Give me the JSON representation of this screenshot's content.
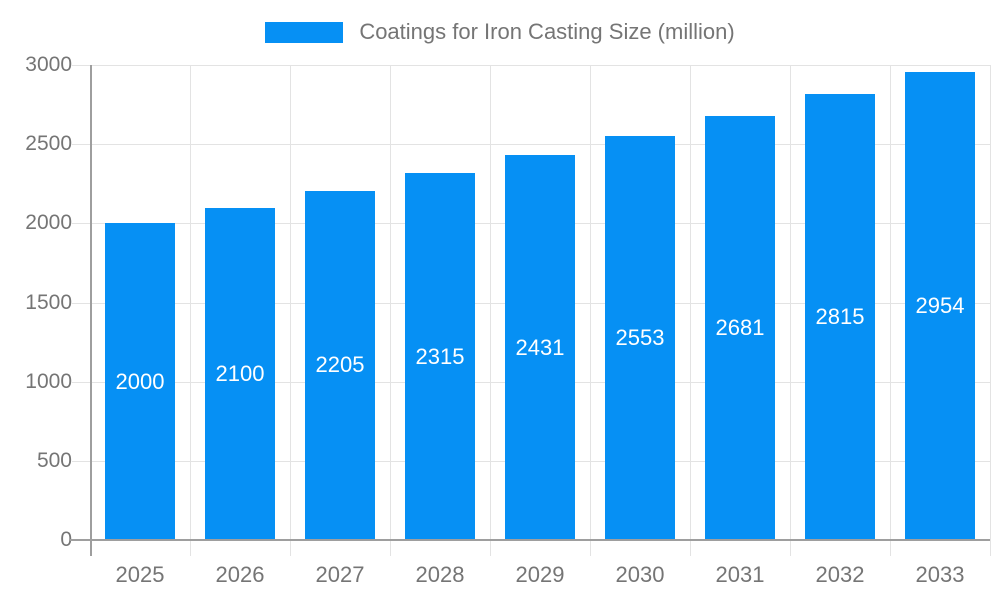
{
  "legend": {
    "label": "Coatings for Iron Casting Size (million)"
  },
  "chart_data": {
    "type": "bar",
    "title": "Coatings for Iron Casting Size (million)",
    "categories": [
      "2025",
      "2026",
      "2027",
      "2028",
      "2029",
      "2030",
      "2031",
      "2032",
      "2033"
    ],
    "values": [
      2000,
      2100,
      2205,
      2315,
      2431,
      2553,
      2681,
      2815,
      2954
    ],
    "series_name": "Coatings for Iron Casting Size (million)",
    "xlabel": "",
    "ylabel": "",
    "ylim": [
      0,
      3000
    ],
    "ytick_step": 500,
    "yticks": [
      0,
      500,
      1000,
      1500,
      2000,
      2500,
      3000
    ],
    "grid": true,
    "legend_position": "top",
    "colors": {
      "bar_fill": "#0690f4",
      "bar_value_text": "#ffffff",
      "axis_text": "#757575",
      "gridline": "#e3e3e3",
      "axis_line": "#9e9e9e",
      "background": "#ffffff"
    }
  }
}
